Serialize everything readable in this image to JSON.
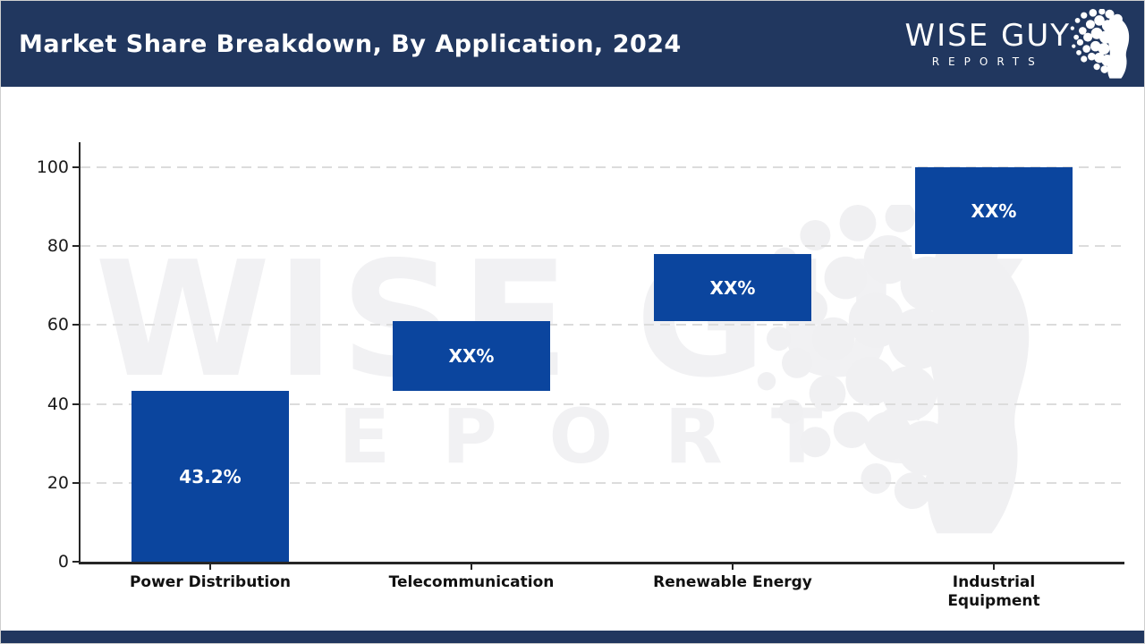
{
  "header": {
    "title": "Market Share Breakdown, By Application, 2024",
    "logo": {
      "line1": "WISE GUY",
      "line2": "REPORTS"
    }
  },
  "watermark": {
    "line1": "WISE GUY",
    "line2": "REPORTS"
  },
  "colors": {
    "header_bg": "#21375f",
    "bar": "#0b459e",
    "bar_label": "#ffffff",
    "grid": "#dcdcdc",
    "axis": "#262626",
    "watermark": "#f1f1f3"
  },
  "chart_data": {
    "type": "bar",
    "subtype": "waterfall",
    "title": "Market Share Breakdown, By Application, 2024",
    "categories": [
      "Power Distribution",
      "Telecommunication",
      "Renewable Energy",
      "Industrial Equipment"
    ],
    "segments": [
      {
        "category": "Power Distribution",
        "tick_label": "Power Distribution",
        "start": 0,
        "end": 43.2,
        "label": "43.2%"
      },
      {
        "category": "Telecommunication",
        "tick_label": "Telecommunication",
        "start": 43.2,
        "end": 61,
        "label": "XX%"
      },
      {
        "category": "Renewable Energy",
        "tick_label": "Renewable Energy",
        "start": 61,
        "end": 78,
        "label": "XX%"
      },
      {
        "category": "Industrial Equipment",
        "tick_label": "Industrial\nEquipment",
        "start": 78,
        "end": 100,
        "label": "XX%"
      }
    ],
    "yticks": [
      0,
      20,
      40,
      60,
      80,
      100
    ],
    "ylim": [
      0,
      105
    ],
    "xlabel": "",
    "ylabel": "",
    "grid": "horizontal-dashed",
    "legend": "none"
  }
}
